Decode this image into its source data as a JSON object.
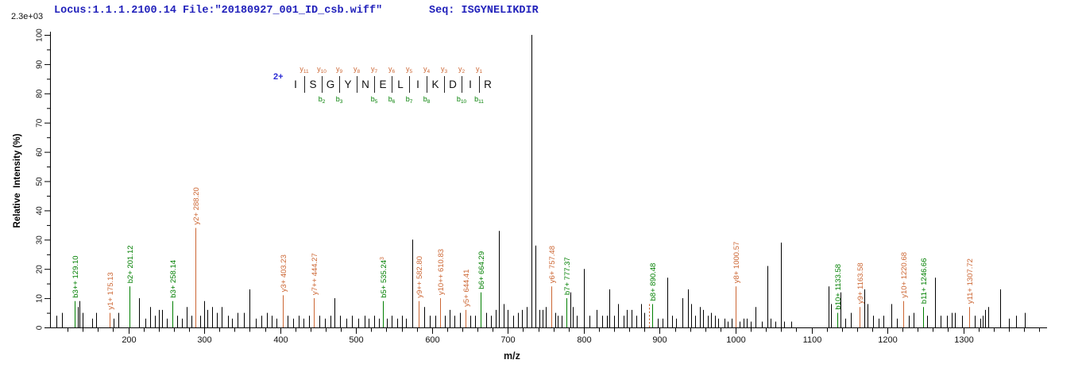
{
  "header": {
    "locus_text": "Locus:1.1.1.2100.14 File:\"20180927_001_ID_csb.wiff\"",
    "seq_text": "Seq: ISGYNELIKDIR",
    "intensity_scale": "2.3e+03"
  },
  "colors": {
    "b_ion": "#007f00",
    "y_ion": "#cc6633",
    "peak": "#000000",
    "header_blue": "#2222bb",
    "charge_blue": "#2a2ad4"
  },
  "peptide": {
    "charge_label": "2+",
    "sequence": "ISGYNELIKDIR",
    "residues": [
      "I",
      "S",
      "G",
      "Y",
      "N",
      "E",
      "L",
      "I",
      "K",
      "D",
      "I",
      "R"
    ],
    "gaps": [
      {
        "y": "y11",
        "b": null
      },
      {
        "y": "y10",
        "b": "b2"
      },
      {
        "y": "y9",
        "b": "b3"
      },
      {
        "y": "y8",
        "b": null
      },
      {
        "y": "y7",
        "b": "b5"
      },
      {
        "y": "y6",
        "b": "b6"
      },
      {
        "y": "y5",
        "b": "b7"
      },
      {
        "y": "y4",
        "b": "b8"
      },
      {
        "y": "y3",
        "b": null
      },
      {
        "y": "y2",
        "b": "b10"
      },
      {
        "y": "y1",
        "b": "b11"
      }
    ]
  },
  "axes": {
    "x_label": "m/z",
    "y_label": "Relative  Intensity (%)",
    "x_major_ticks": [
      200,
      300,
      400,
      500,
      600,
      700,
      800,
      900,
      1000,
      1100,
      1200,
      1300
    ],
    "x_minor_step": 20,
    "y_major_ticks": [
      0,
      10,
      20,
      30,
      40,
      50,
      60,
      70,
      80,
      90,
      100
    ],
    "y_minor_step": 5
  },
  "chart_data": {
    "type": "bar",
    "title": "Locus:1.1.1.2100.14 File:\"20180927_001_ID_csb.wiff\" Seq: ISGYNELIKDIR",
    "xlabel": "m/z",
    "ylabel": "Relative Intensity (%)",
    "xlim": [
      96,
      1410
    ],
    "ylim": [
      0,
      100
    ],
    "grid": false,
    "base_peak_absolute_intensity": "2.3e+03",
    "precursor_charge": "2+",
    "peptide_sequence": "ISGYNELIKDIR",
    "matched_b_ions": [
      "b3++ 129.10",
      "b2+ 201.12",
      "b3+ 258.14",
      "b5+ 535.24",
      "b6+ 664.29",
      "b7+ 777.37",
      "b8+ 890.48",
      "b10+ 1133.58",
      "b11+ 1246.66"
    ],
    "matched_y_ions": [
      "y1+ 175.13",
      "y2+ 288.20",
      "y3+ 403.23",
      "y7++ 444.27",
      "y9++ 582.80",
      "y10++ 610.83",
      "y5+ 644.41",
      "y6+ 757.48",
      "y8+ 1000.57",
      "y9+ 1163.58",
      "y10+ 1220.68",
      "y11+ 1307.72"
    ],
    "peaks": [
      [
        105,
        4
      ],
      [
        113,
        5
      ],
      {
        "mz": 129.1,
        "intensity": 9,
        "ion": "b",
        "label": "b3++ 129.10"
      },
      [
        133,
        7
      ],
      [
        136,
        9
      ],
      [
        140,
        5
      ],
      [
        152,
        3
      ],
      [
        158,
        5
      ],
      {
        "mz": 175.13,
        "intensity": 5,
        "ion": "y",
        "label": "y1+ 175.13"
      },
      [
        181,
        3
      ],
      [
        187,
        5
      ],
      {
        "mz": 201.12,
        "intensity": 14,
        "ion": "b",
        "label": "b2+ 201.12"
      },
      [
        214,
        10
      ],
      [
        222,
        3
      ],
      [
        229,
        7
      ],
      [
        235,
        4
      ],
      [
        240,
        6
      ],
      [
        244,
        6
      ],
      [
        251,
        3
      ],
      {
        "mz": 258.14,
        "intensity": 9,
        "ion": "b",
        "label": "b3+ 258.14"
      },
      [
        264,
        4
      ],
      [
        271,
        3
      ],
      [
        277,
        7
      ],
      [
        283,
        4
      ],
      {
        "mz": 288.2,
        "intensity": 34,
        "ion": "y",
        "label": "y2+ 288.20"
      },
      [
        295,
        4
      ],
      [
        300,
        9
      ],
      [
        304,
        6
      ],
      [
        310,
        7
      ],
      [
        317,
        5
      ],
      [
        323,
        7
      ],
      [
        331,
        4
      ],
      [
        337,
        3
      ],
      [
        344,
        5
      ],
      [
        352,
        5
      ],
      [
        360,
        13
      ],
      [
        368,
        3
      ],
      [
        375,
        4
      ],
      [
        383,
        5
      ],
      [
        389,
        4
      ],
      [
        395,
        3
      ],
      {
        "mz": 403.23,
        "intensity": 11,
        "ion": "y",
        "label": "y3+ 403.23"
      },
      [
        410,
        4
      ],
      [
        417,
        3
      ],
      [
        424,
        4
      ],
      [
        431,
        3
      ],
      [
        438,
        4
      ],
      {
        "mz": 444.27,
        "intensity": 10,
        "ion": "y",
        "label": "y7++ 444.27"
      },
      [
        452,
        4
      ],
      [
        459,
        3
      ],
      [
        466,
        4
      ],
      [
        472,
        10
      ],
      [
        479,
        4
      ],
      [
        487,
        3
      ],
      [
        495,
        4
      ],
      [
        503,
        3
      ],
      [
        511,
        4
      ],
      [
        517,
        3
      ],
      [
        524,
        4
      ],
      [
        530,
        3
      ],
      {
        "mz": 535.24,
        "intensity": 9,
        "ion": "b",
        "label": "b5+ 535.24",
        "suffix": "3"
      },
      [
        541,
        3
      ],
      [
        547,
        4
      ],
      [
        554,
        3
      ],
      [
        560,
        4
      ],
      [
        566,
        3
      ],
      [
        574,
        30
      ],
      {
        "mz": 582.8,
        "intensity": 9,
        "ion": "y",
        "label": "y9++ 582.80"
      },
      [
        590,
        7
      ],
      [
        597,
        4
      ],
      [
        604,
        4
      ],
      {
        "mz": 610.83,
        "intensity": 10,
        "ion": "y",
        "label": "y10++ 610.83"
      },
      [
        617,
        4
      ],
      [
        623,
        6
      ],
      [
        630,
        4
      ],
      [
        637,
        5
      ],
      {
        "mz": 644.41,
        "intensity": 6,
        "ion": "y",
        "label": "y5+ 644.41"
      },
      [
        650,
        4
      ],
      [
        657,
        4
      ],
      {
        "mz": 664.29,
        "intensity": 12,
        "ion": "b",
        "label": "b6+ 664.29"
      },
      [
        671,
        5
      ],
      [
        678,
        4
      ],
      [
        684,
        6
      ],
      [
        688,
        33
      ],
      [
        694,
        8
      ],
      [
        700,
        6
      ],
      [
        707,
        4
      ],
      [
        713,
        5
      ],
      [
        719,
        6
      ],
      [
        725,
        7
      ],
      [
        731.4,
        100
      ],
      [
        736,
        28
      ],
      [
        742,
        6
      ],
      [
        746,
        6
      ],
      [
        750,
        7
      ],
      {
        "mz": 757.48,
        "intensity": 14,
        "ion": "y",
        "label": "y6+ 757.48"
      },
      [
        763,
        5
      ],
      [
        766,
        4
      ],
      [
        771,
        4
      ],
      {
        "mz": 777.37,
        "intensity": 10,
        "ion": "b",
        "label": "b7+ 777.37"
      },
      [
        782,
        12
      ],
      [
        785,
        7
      ],
      [
        791,
        4
      ],
      [
        800,
        20
      ],
      [
        808,
        4
      ],
      [
        817,
        6
      ],
      [
        824,
        4
      ],
      [
        830,
        4
      ],
      [
        834,
        13
      ],
      [
        840,
        4
      ],
      [
        845,
        8
      ],
      [
        852,
        4
      ],
      [
        857,
        6
      ],
      [
        863,
        6
      ],
      [
        869,
        4
      ],
      [
        875,
        8
      ],
      [
        880,
        5
      ],
      {
        "mz": 886.3,
        "intensity": 8,
        "ion": "y",
        "dashed": true
      },
      {
        "mz": 890.48,
        "intensity": 8,
        "ion": "b",
        "label": "b8+ 890.48"
      },
      [
        897,
        3
      ],
      [
        904,
        3
      ],
      [
        910,
        17
      ],
      [
        916,
        4
      ],
      [
        922,
        3
      ],
      [
        930,
        10
      ],
      [
        937,
        13
      ],
      [
        941,
        8
      ],
      [
        947,
        4
      ],
      [
        953,
        7
      ],
      [
        957,
        6
      ],
      [
        963,
        4
      ],
      [
        968,
        5
      ],
      [
        973,
        4
      ],
      [
        977,
        3
      ],
      [
        985,
        3
      ],
      [
        990,
        2
      ],
      [
        995,
        3
      ],
      {
        "mz": 1000.57,
        "intensity": 14,
        "ion": "y",
        "label": "y8+ 1000.57"
      },
      [
        1005,
        2
      ],
      [
        1010,
        3
      ],
      [
        1015,
        3
      ],
      [
        1020,
        2
      ],
      [
        1026,
        7
      ],
      [
        1035,
        2
      ],
      [
        1042,
        21
      ],
      [
        1046,
        3
      ],
      [
        1052,
        2
      ],
      [
        1060,
        29
      ],
      [
        1064,
        2
      ],
      [
        1073,
        2
      ],
      [
        1123,
        14
      ],
      [
        1126,
        8
      ],
      {
        "mz": 1133.58,
        "intensity": 5,
        "ion": "b",
        "label": "b10+ 1133.58"
      },
      [
        1138,
        12
      ],
      [
        1145,
        3
      ],
      [
        1152,
        5
      ],
      {
        "mz": 1163.58,
        "intensity": 7,
        "ion": "y",
        "label": "y9+ 1163.58"
      },
      [
        1170,
        13
      ],
      [
        1174,
        8
      ],
      [
        1181,
        4
      ],
      [
        1188,
        3
      ],
      [
        1195,
        4
      ],
      [
        1205,
        8
      ],
      [
        1212,
        3
      ],
      {
        "mz": 1220.68,
        "intensity": 9,
        "ion": "y",
        "label": "y10+ 1220.68"
      },
      [
        1228,
        4
      ],
      [
        1235,
        5
      ],
      {
        "mz": 1246.66,
        "intensity": 7,
        "ion": "b",
        "label": "b11+ 1246.66"
      },
      [
        1252,
        4
      ],
      [
        1263,
        17
      ],
      [
        1270,
        4
      ],
      [
        1278,
        4
      ],
      [
        1285,
        5
      ],
      [
        1289,
        5
      ],
      [
        1298,
        4
      ],
      {
        "mz": 1307.72,
        "intensity": 7,
        "ion": "y",
        "label": "y11+ 1307.72"
      },
      [
        1315,
        4
      ],
      [
        1322,
        3
      ],
      [
        1326,
        4
      ],
      [
        1329,
        6
      ],
      [
        1333,
        7
      ],
      [
        1349,
        13
      ],
      [
        1360,
        3
      ],
      [
        1370,
        4
      ],
      [
        1381,
        5
      ]
    ]
  }
}
